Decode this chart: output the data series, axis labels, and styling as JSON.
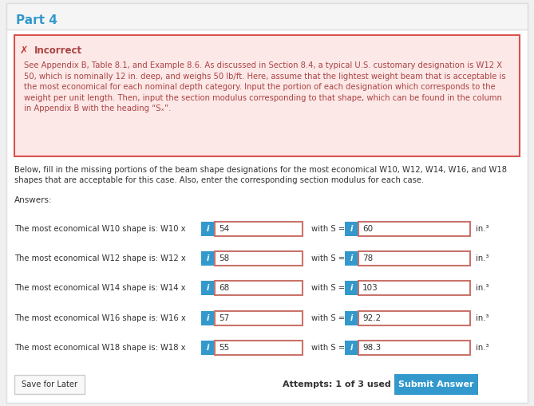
{
  "title": "Part 4",
  "bg_outer": "#f0f0f0",
  "bg_inner": "#ffffff",
  "title_color": "#3399cc",
  "error_bg": "#fde8e8",
  "error_border": "#d9534f",
  "error_icon_color": "#c0392b",
  "error_text_color": "#a94442",
  "body_text_color": "#333333",
  "incorrect_label": "Incorrect",
  "error_lines": [
    "See Appendix B, Table 8.1, and Example 8.6. As discussed in Section 8.4, a typical U.S. customary designation is W12 X",
    "50, which is nominally 12 in. deep, and weighs 50 lb/ft. Here, assume that the lightest weight beam that is acceptable is",
    "the most economical for each nominal depth category. Input the portion of each designation which corresponds to the",
    "weight per unit length. Then, input the section modulus corresponding to that shape, which can be found in the column",
    "in Appendix B with the heading “Sₓ”."
  ],
  "below_lines": [
    "Below, fill in the missing portions of the beam shape designations for the most economical W10, W12, W14, W16, and W18",
    "shapes that are acceptable for this case. Also, enter the corresponding section modulus for each case."
  ],
  "answers_label": "Answers:",
  "rows": [
    {
      "label": "The most economical W10 shape is: W10 x",
      "val1": "54",
      "val2": "60"
    },
    {
      "label": "The most economical W12 shape is: W12 x",
      "val1": "58",
      "val2": "78"
    },
    {
      "label": "The most economical W14 shape is: W14 x",
      "val1": "68",
      "val2": "103"
    },
    {
      "label": "The most economical W16 shape is: W16 x",
      "val1": "57",
      "val2": "92.2"
    },
    {
      "label": "The most economical W18 shape is: W18 x",
      "val1": "55",
      "val2": "98.3"
    }
  ],
  "with_s": "with S =",
  "in3": "in.³",
  "input_border": "#c9736b",
  "input_bg": "#ffffff",
  "btn_blue_bg": "#3399cc",
  "save_label": "Save for Later",
  "attempts_text": "Attempts: 1 of 3 used",
  "submit_label": "Submit Answer",
  "card_border": "#dddddd",
  "header_bg": "#f5f5f5"
}
